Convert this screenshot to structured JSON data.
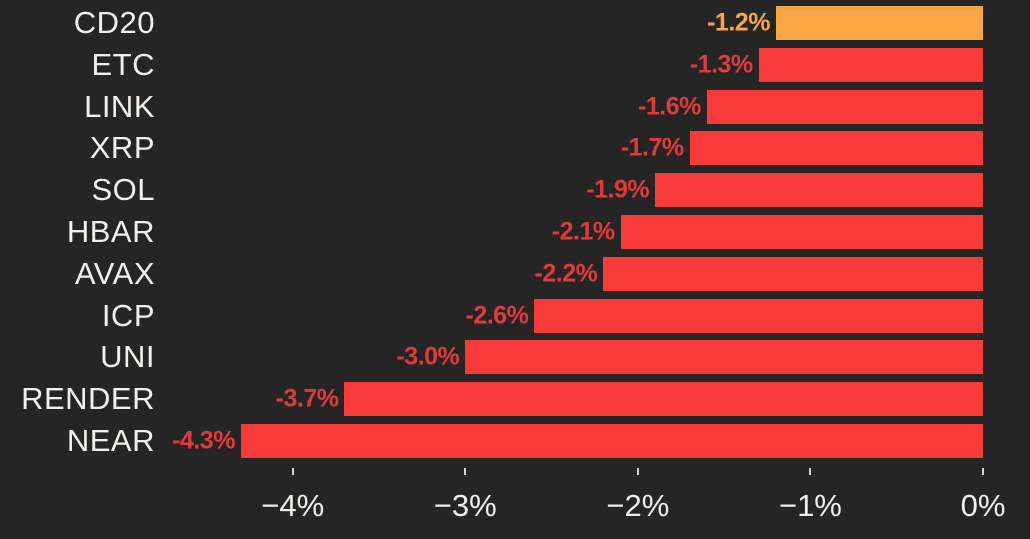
{
  "chart_data": {
    "type": "bar",
    "orientation": "horizontal",
    "title": "",
    "xlabel": "",
    "ylabel": "",
    "grid": false,
    "legend": false,
    "categories": [
      "CD20",
      "ETC",
      "LINK",
      "XRP",
      "SOL",
      "HBAR",
      "AVAX",
      "ICP",
      "UNI",
      "RENDER",
      "NEAR"
    ],
    "values": [
      -1.2,
      -1.3,
      -1.6,
      -1.7,
      -1.9,
      -2.1,
      -2.2,
      -2.6,
      -3.0,
      -3.7,
      -4.3
    ],
    "value_labels": [
      "-1.2%",
      "-1.3%",
      "-1.6%",
      "-1.7%",
      "-1.9%",
      "-2.1%",
      "-2.2%",
      "-2.6%",
      "-3.0%",
      "-3.7%",
      "-4.3%"
    ],
    "bar_colors": [
      "#f9a744",
      "#f63b38",
      "#f63b38",
      "#f63b38",
      "#f63b38",
      "#f63b38",
      "#f63b38",
      "#f63b38",
      "#f63b38",
      "#f63b38",
      "#f63b38"
    ],
    "value_label_colors": [
      "#f9a744",
      "#e13a3c",
      "#e13a3c",
      "#e13a3c",
      "#e13a3c",
      "#e13a3c",
      "#e13a3c",
      "#e13a3c",
      "#e13a3c",
      "#e13a3c",
      "#e13a3c"
    ],
    "highlighted_category": "CD20",
    "xlim": [
      -4.74,
      0
    ],
    "x_ticks": [
      -4,
      -3,
      -2,
      -1,
      0
    ],
    "x_tick_labels": [
      "−4%",
      "−3%",
      "−2%",
      "−1%",
      "0%"
    ]
  },
  "colors": {
    "background": "#262525",
    "bar_negative": "#f63b38",
    "bar_highlight": "#f9a744",
    "axis_text": "#f2efec",
    "tick_mark": "#d8d5d2"
  }
}
